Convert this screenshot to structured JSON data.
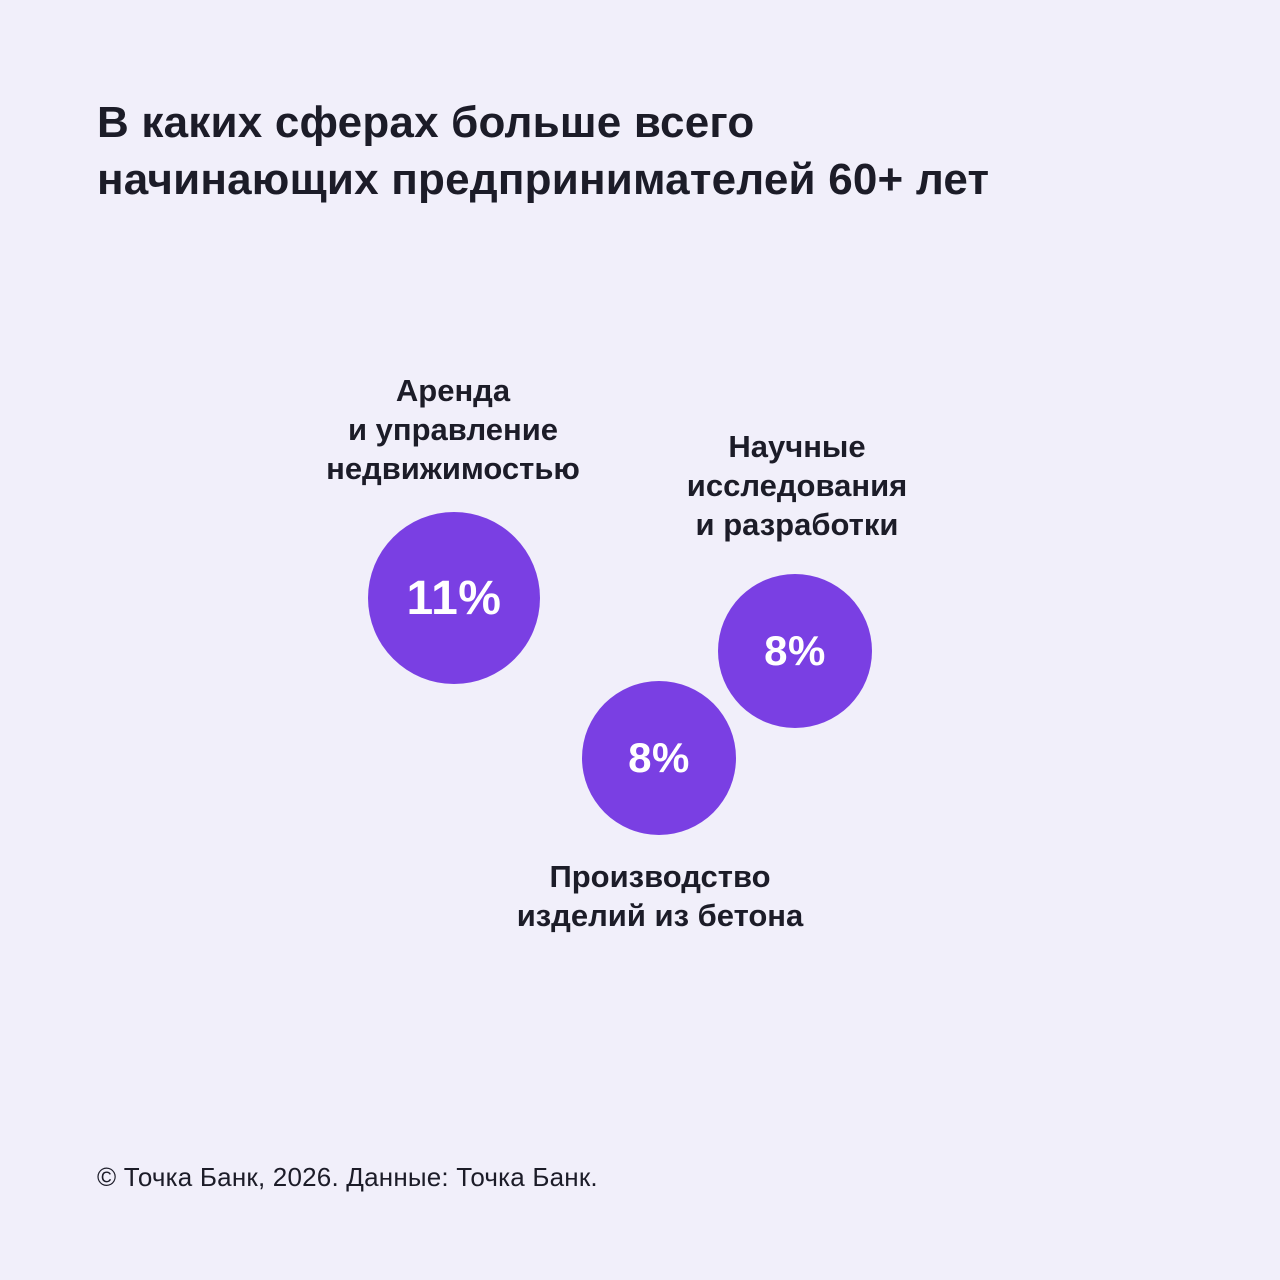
{
  "header": {
    "title": "В каких сферах больше всего\nначинающих предпринимателей 60+ лет"
  },
  "footer": {
    "credit": "© Точка Банк, 2026. Данные: Точка Банк."
  },
  "colors": {
    "background": "#F1EFFA",
    "bubble": "#7A3FE3",
    "text": "#1C1C28",
    "bubble_text": "#FFFFFF"
  },
  "chart_data": {
    "type": "scatter",
    "subtype": "bubble",
    "title": "В каких сферах больше всего начинающих предпринимателей 60+ лет",
    "unit": "%",
    "legend": "none",
    "points": [
      {
        "label": "Аренда\nи управление\nнедвижимостью",
        "value": 11,
        "value_label": "11%"
      },
      {
        "label": "Научные\nисследования\nи разработки",
        "value": 8,
        "value_label": "8%"
      },
      {
        "label": "Производство\nизделий из бетона",
        "value": 8,
        "value_label": "8%"
      }
    ]
  }
}
